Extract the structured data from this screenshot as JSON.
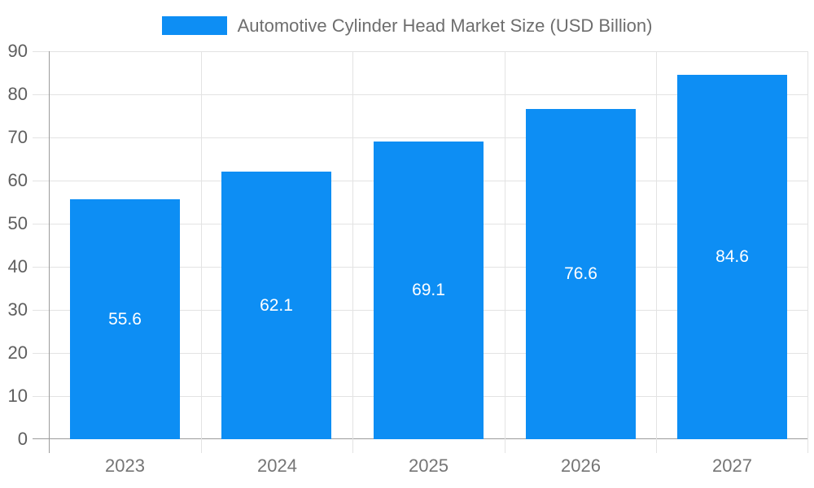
{
  "chart_data": {
    "type": "bar",
    "title": "Automotive Cylinder Head Market Size (USD Billion)",
    "categories": [
      "2023",
      "2024",
      "2025",
      "2026",
      "2027"
    ],
    "values": [
      55.6,
      62.1,
      69.1,
      76.6,
      84.6
    ],
    "series": [
      {
        "name": "Automotive Cylinder Head Market Size (USD Billion)",
        "values": [
          55.6,
          62.1,
          69.1,
          76.6,
          84.6
        ]
      }
    ],
    "xlabel": "",
    "ylabel": "",
    "ylim": [
      0,
      90
    ],
    "ytick_step": 10,
    "yticks": [
      0,
      10,
      20,
      30,
      40,
      50,
      60,
      70,
      80,
      90
    ],
    "grid": true,
    "legend_position": "top",
    "colors": {
      "bar": "#0d8ef4",
      "bar_label": "#ffffff",
      "gridline": "#e3e3e3",
      "axis_line": "#9c9c9c",
      "ytick_label": "#5e5e5e",
      "xtick_label": "#757575",
      "legend_text": "#6e6e6e"
    }
  }
}
